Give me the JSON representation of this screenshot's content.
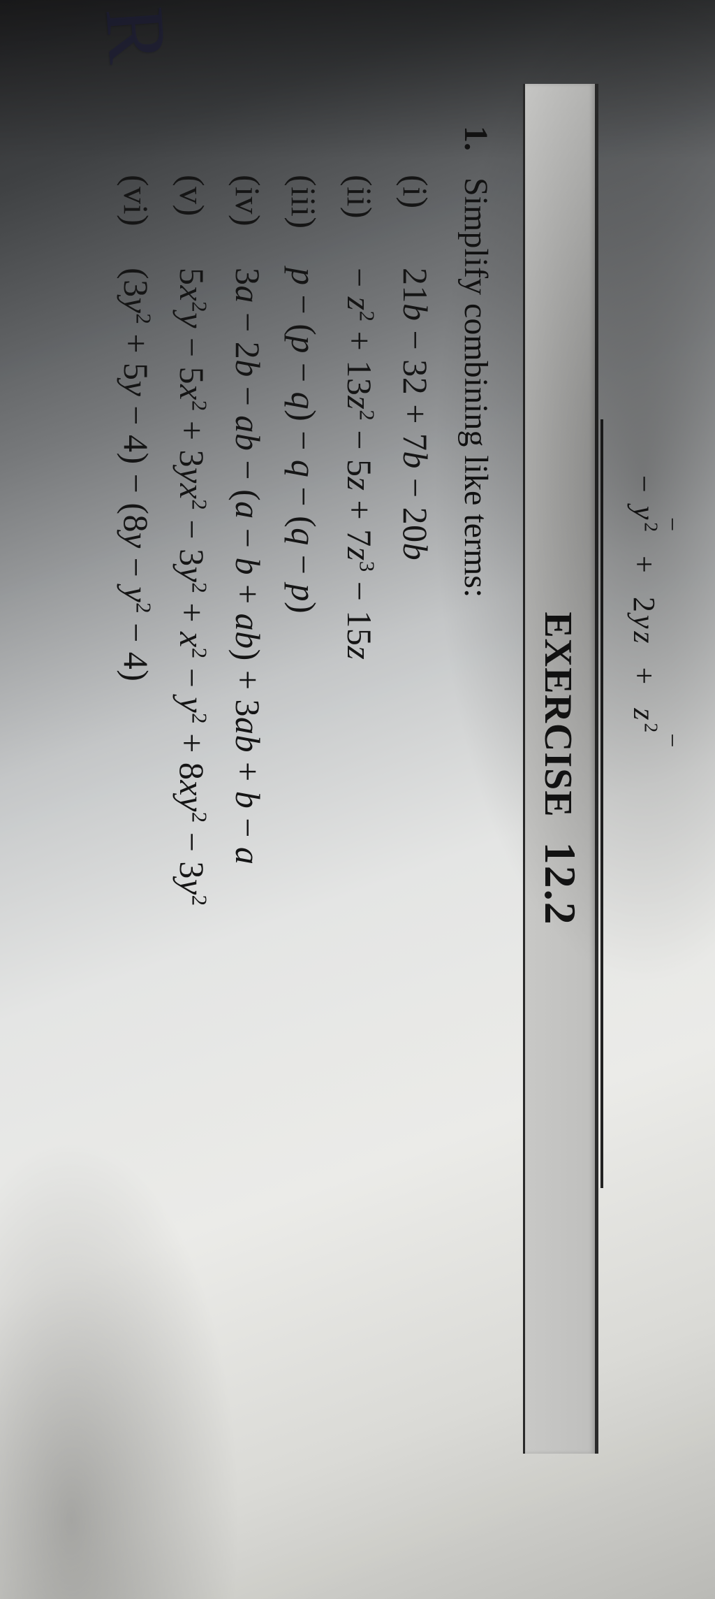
{
  "top_expression": {
    "sign_row": "−        −",
    "line": "− y²   +   2yz   +   z²"
  },
  "banner": {
    "label": "EXERCISE",
    "number": "12.2",
    "bg_color": "#c4c4c2",
    "text_color": "#141414"
  },
  "question": {
    "number": "1.",
    "stem": "Simplify combining like terms:"
  },
  "items": [
    {
      "label": "(i)",
      "expr": "21b − 32 + 7b − 20b"
    },
    {
      "label": "(ii)",
      "expr": "− z² + 13z² − 5z + 7z³ − 15z"
    },
    {
      "label": "(iii)",
      "expr": "p − (p − q) − q − (q − p)"
    },
    {
      "label": "(iv)",
      "expr": "3a − 2b − ab − (a − b + ab) + 3ab + b − a"
    },
    {
      "label": "(v)",
      "expr": "5x²y − 5x² + 3yx² − 3y² + x² − y² + 8xy² − 3y²"
    },
    {
      "label": "(vi)",
      "expr": "(3y² + 5y − 4) − (8y − y² − 4)"
    }
  ],
  "handwriting": "R",
  "colors": {
    "page_bg_light": "#e9e9e6",
    "page_bg_dark": "#2e2e30",
    "ink": "#111111"
  }
}
